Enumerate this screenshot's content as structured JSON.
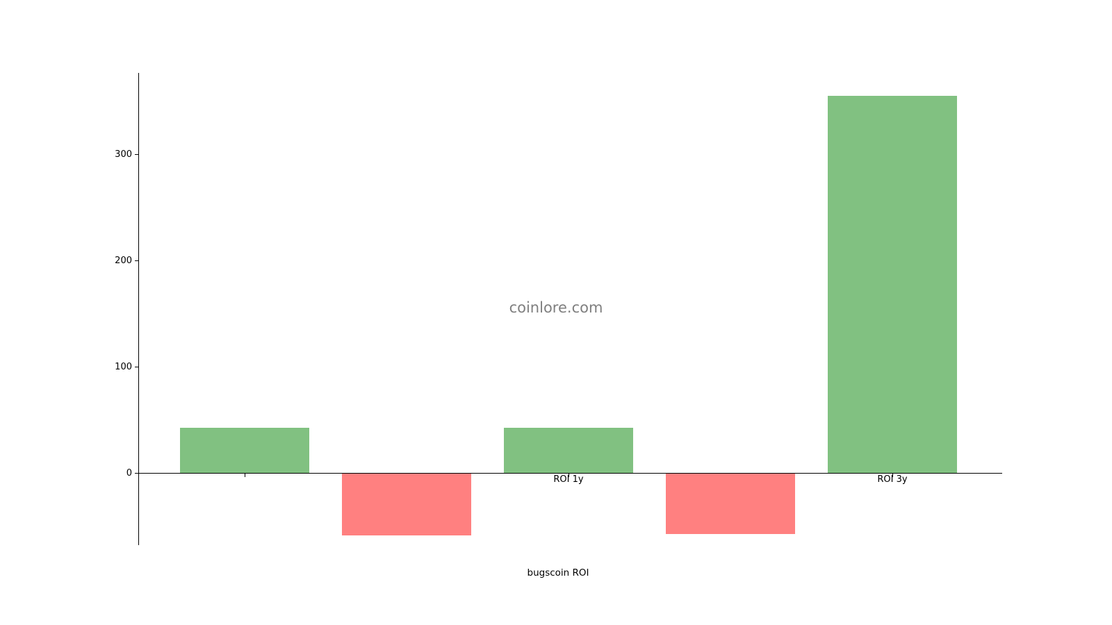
{
  "watermark": "coinlore.com",
  "chart_data": {
    "type": "bar",
    "title": "",
    "xlabel": "bugscoin ROI",
    "ylabel": "",
    "categories": [
      "",
      "",
      "ROI 1y",
      "",
      "ROI 3y"
    ],
    "values": [
      42.5,
      -58,
      42.5,
      -57,
      355
    ],
    "yticks": [
      0,
      100,
      200,
      300
    ],
    "ylim": [
      -68,
      377
    ],
    "grid": false,
    "legend_position": "none",
    "colors": {
      "positive_bar": "#81c181",
      "negative_bar": "#ff8080",
      "axis": "#000000",
      "tick_text": "#000000",
      "watermark_text": "#7f7f7f"
    }
  }
}
